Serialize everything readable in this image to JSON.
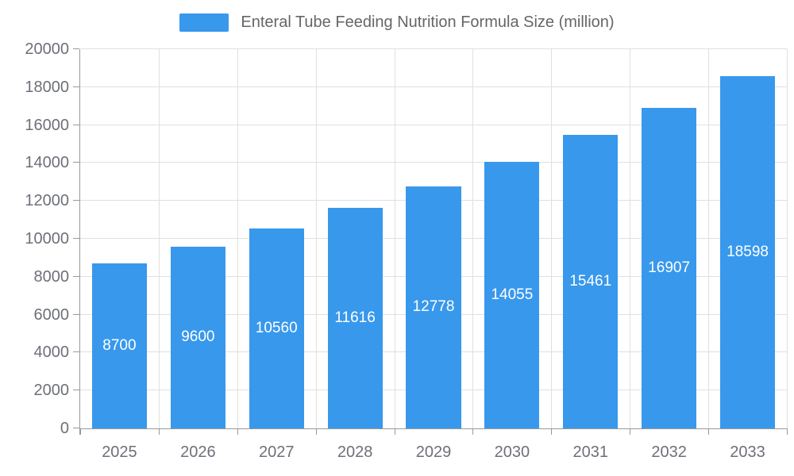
{
  "colors": {
    "bar": "#3898EC",
    "axis_line": "#999999",
    "grid_line": "#E0E0E0",
    "tick_label": "#6E7079",
    "legend_text": "#666666",
    "value_label": "#FFFFFF",
    "background": "#FFFFFF"
  },
  "chart_data": {
    "type": "bar",
    "title": "Enteral Tube Feeding Nutrition Formula Size (million)",
    "legend": {
      "entries": [
        "Enteral Tube Feeding Nutrition Formula Size (million)"
      ],
      "position": "top-center",
      "marker": "rect"
    },
    "categories": [
      "2025",
      "2026",
      "2027",
      "2028",
      "2029",
      "2030",
      "2031",
      "2032",
      "2033"
    ],
    "series": [
      {
        "name": "Enteral Tube Feeding Nutrition Formula Size (million)",
        "values": [
          8700,
          9600,
          10560,
          11616,
          12778,
          14055,
          15461,
          16907,
          18598
        ]
      }
    ],
    "value_labels": [
      "8700",
      "9600",
      "10560",
      "11616",
      "12778",
      "14055",
      "15461",
      "16907",
      "18598"
    ],
    "value_label_position": "inside-center",
    "xlabel": "",
    "ylabel": "",
    "ylim": [
      0,
      20000
    ],
    "y_ticks": [
      0,
      2000,
      4000,
      6000,
      8000,
      10000,
      12000,
      14000,
      16000,
      18000,
      20000
    ],
    "y_tick_labels": [
      "0",
      "2000",
      "4000",
      "6000",
      "8000",
      "10000",
      "12000",
      "14000",
      "16000",
      "18000",
      "20000"
    ],
    "grid": true,
    "bar_width_fraction": 0.7
  }
}
